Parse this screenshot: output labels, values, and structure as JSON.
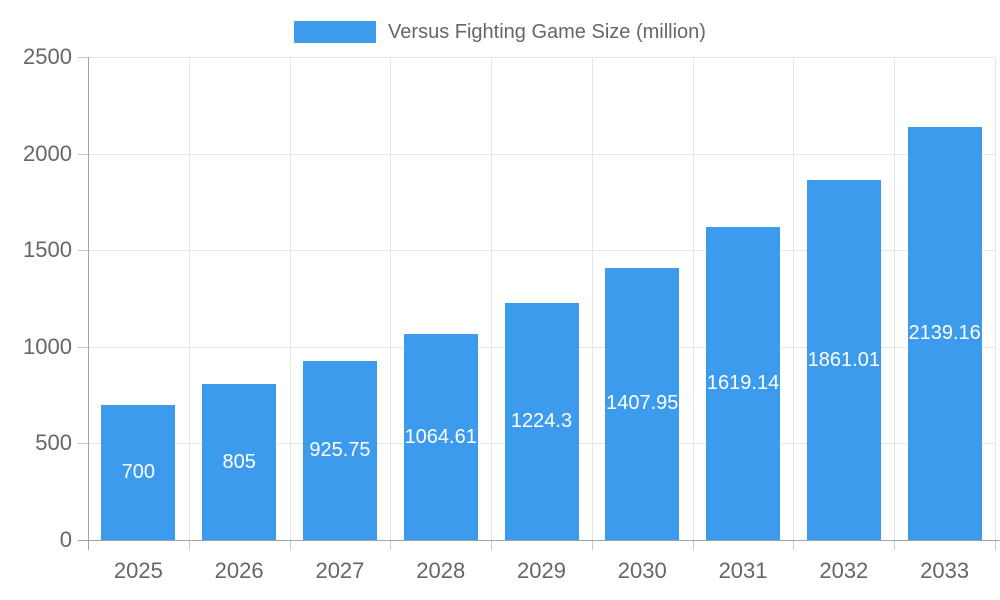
{
  "legend": {
    "label": "Versus Fighting Game Size (million)"
  },
  "chart_data": {
    "type": "bar",
    "title": "Versus Fighting Game Size (million)",
    "categories": [
      "2025",
      "2026",
      "2027",
      "2028",
      "2029",
      "2030",
      "2031",
      "2032",
      "2033"
    ],
    "values": [
      700,
      805,
      925.75,
      1064.61,
      1224.3,
      1407.95,
      1619.14,
      1861.01,
      2139.16
    ],
    "bar_labels": [
      "700",
      "805",
      "925.75",
      "1064.61",
      "1224.3",
      "1407.95",
      "1619.14",
      "1861.01",
      "2139.16"
    ],
    "xlabel": "",
    "ylabel": "",
    "ylim": [
      0,
      2500
    ],
    "yticks": [
      0,
      500,
      1000,
      1500,
      2000,
      2500
    ],
    "grid": true,
    "legend_position": "top",
    "colors": {
      "bar": "#3D9BEE",
      "grid": "#e6e6e6",
      "axis": "#a3a3a3",
      "tick": "#c9c9c9",
      "tick_label": "#666666",
      "bar_label": "#ffffff",
      "background": "#ffffff"
    }
  }
}
